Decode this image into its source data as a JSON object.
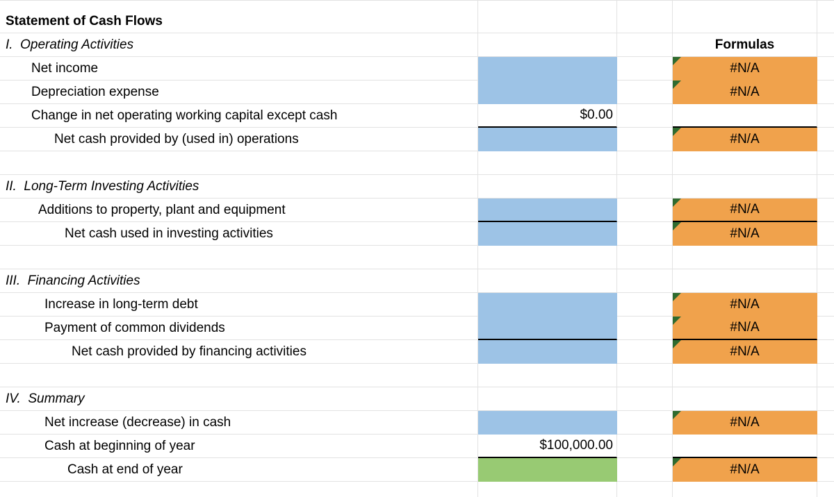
{
  "title": "Statement of Cash Flows",
  "colors": {
    "fill_blue": "#9DC3E6",
    "fill_orange": "#F0A24C",
    "fill_green": "#98CA73",
    "triangle_green": "#2F6B2F",
    "gridline": "#E2E2E2",
    "border_black": "#000000"
  },
  "rows": [
    {
      "label": "Statement of Cash Flows"
    },
    {
      "label": "I.  Operating Activities",
      "header": "Formulas"
    },
    {
      "label": "Net income",
      "formula": "#N/A"
    },
    {
      "label": "Depreciation expense",
      "formula": "#N/A"
    },
    {
      "label": "Change in net operating working capital except cash",
      "value": "$0.00"
    },
    {
      "label": "Net cash provided by (used in) operations",
      "formula": "#N/A"
    },
    {
      "label": ""
    },
    {
      "label": "II.  Long-Term Investing Activities"
    },
    {
      "label": "Additions to property, plant and equipment",
      "formula": "#N/A"
    },
    {
      "label": "Net cash used in investing activities",
      "formula": "#N/A"
    },
    {
      "label": ""
    },
    {
      "label": "III.  Financing Activities"
    },
    {
      "label": "Increase in long-term debt",
      "formula": "#N/A"
    },
    {
      "label": "Payment of common dividends",
      "formula": "#N/A"
    },
    {
      "label": "Net cash provided by financing activities",
      "formula": "#N/A"
    },
    {
      "label": ""
    },
    {
      "label": "IV.  Summary"
    },
    {
      "label": "Net increase (decrease) in cash",
      "formula": "#N/A"
    },
    {
      "label": "Cash at beginning of year",
      "value": "$100,000.00"
    },
    {
      "label": "Cash at end of year",
      "formula": "#N/A"
    },
    {
      "label": ""
    }
  ]
}
